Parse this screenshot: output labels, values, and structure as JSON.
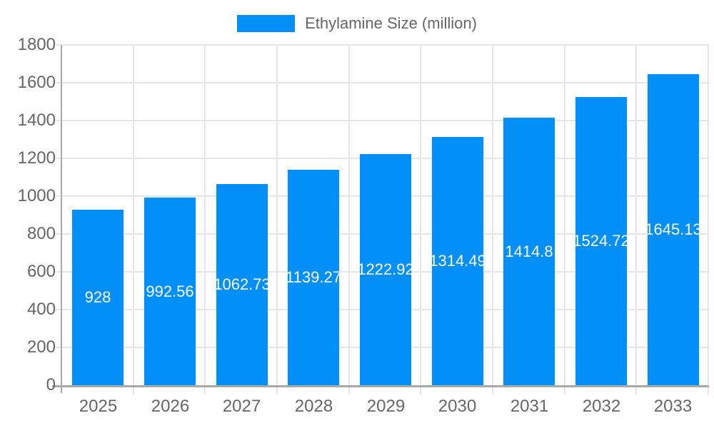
{
  "legend": {
    "label": "Ethylamine Size (million)"
  },
  "colors": {
    "bar": "#0290F8",
    "grid": "#e6e6e6",
    "axis": "#a9a9a9",
    "tick_text": "#666666",
    "legend_text": "#666666",
    "bar_label_text": "#ffffff",
    "background": "#ffffff"
  },
  "chart_data": {
    "type": "bar",
    "title": "Ethylamine Size (million)",
    "categories": [
      "2025",
      "2026",
      "2027",
      "2028",
      "2029",
      "2030",
      "2031",
      "2032",
      "2033"
    ],
    "values": [
      928,
      992.56,
      1062.73,
      1139.27,
      1222.92,
      1314.49,
      1414.8,
      1524.72,
      1645.13
    ],
    "bar_labels": [
      "928",
      "992.56",
      "1062.73",
      "1139.27",
      "1222.92",
      "1314.49",
      "1414.8",
      "1524.72",
      "1645.13"
    ],
    "series": [
      {
        "name": "Ethylamine Size (million)",
        "values": [
          928,
          992.56,
          1062.73,
          1139.27,
          1222.92,
          1314.49,
          1414.8,
          1524.72,
          1645.13
        ]
      }
    ],
    "xlabel": "",
    "ylabel": "",
    "ylim": [
      0,
      1800
    ],
    "yticks": [
      0,
      200,
      400,
      600,
      800,
      1000,
      1200,
      1400,
      1600,
      1800
    ],
    "grid": true,
    "legend_position": "top",
    "value_labels_inside_bars": true
  }
}
